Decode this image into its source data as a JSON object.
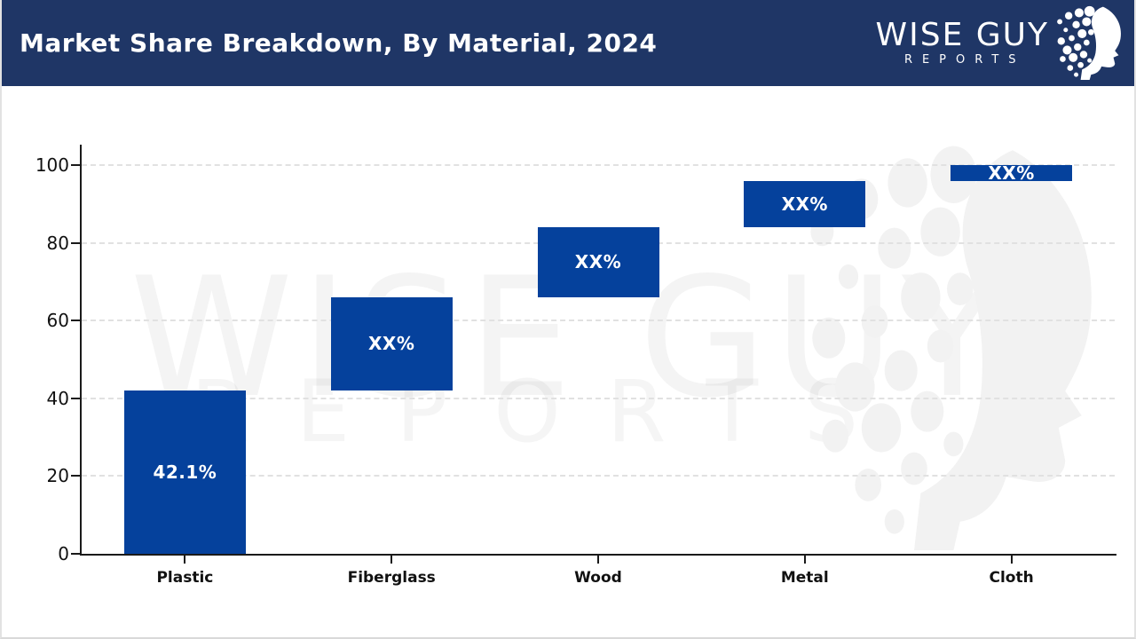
{
  "header": {
    "title": "Market Share Breakdown, By Material, 2024",
    "background": "#1f3666",
    "logo": {
      "line1": "WISE GUY",
      "line2": "REPORTS"
    }
  },
  "watermark": {
    "line1": "WISE GUY",
    "line2": "REPORTS"
  },
  "chart_data": {
    "type": "bar",
    "subtype": "waterfall",
    "title": "Market Share Breakdown, By Material, 2024",
    "categories": [
      "Plastic",
      "Fiberglass",
      "Wood",
      "Metal",
      "Cloth"
    ],
    "segments": [
      {
        "category": "Plastic",
        "start": 0,
        "end": 42.1,
        "label": "42.1%"
      },
      {
        "category": "Fiberglass",
        "start": 42.1,
        "end": 66,
        "label": "XX%"
      },
      {
        "category": "Wood",
        "start": 66,
        "end": 84,
        "label": "XX%"
      },
      {
        "category": "Metal",
        "start": 84,
        "end": 96,
        "label": "XX%"
      },
      {
        "category": "Cloth",
        "start": 96,
        "end": 100,
        "label": "XX%"
      }
    ],
    "yticks": [
      0,
      20,
      40,
      60,
      80,
      100
    ],
    "ylim": [
      0,
      105
    ],
    "grid": "horizontal-dashed",
    "legend": "none",
    "bar_color": "#05419c",
    "bar_label_color": "#ffffff"
  }
}
